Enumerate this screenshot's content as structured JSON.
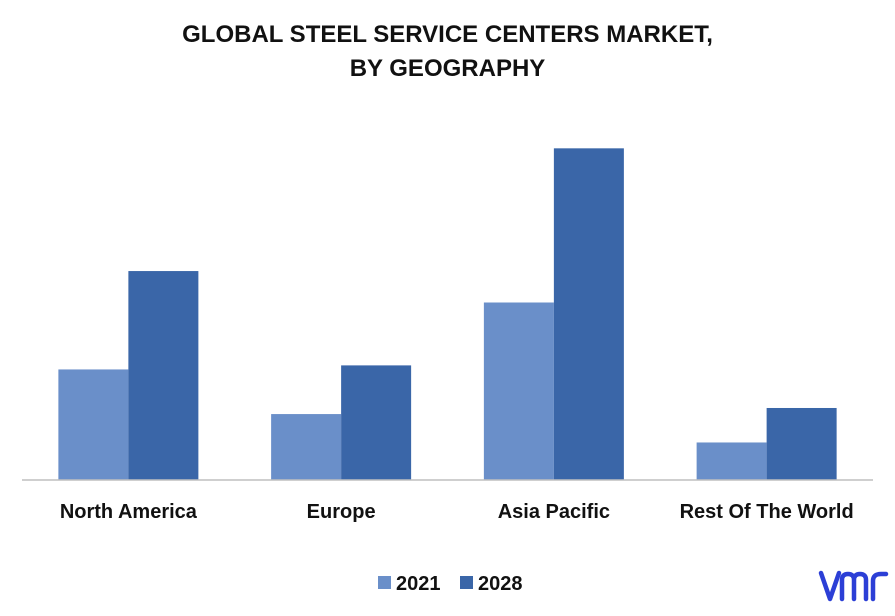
{
  "chart_data": {
    "type": "bar",
    "title_lines": [
      "GLOBAL STEEL SERVICE CENTERS MARKET,",
      "BY GEOGRAPHY"
    ],
    "categories": [
      "North America",
      "Europe",
      "Asia Pacific",
      "Rest Of The World"
    ],
    "series": [
      {
        "name": "2021",
        "color": "#6a8fc9",
        "values": [
          109,
          65,
          175,
          37
        ]
      },
      {
        "name": "2028",
        "color": "#3a66a8",
        "values": [
          206,
          113,
          327,
          71
        ]
      }
    ],
    "ylim": [
      0,
      350
    ],
    "grid": false,
    "legend_position": "bottom-center"
  },
  "logo": {
    "text": "vmr",
    "color": "#2c3fd6"
  }
}
